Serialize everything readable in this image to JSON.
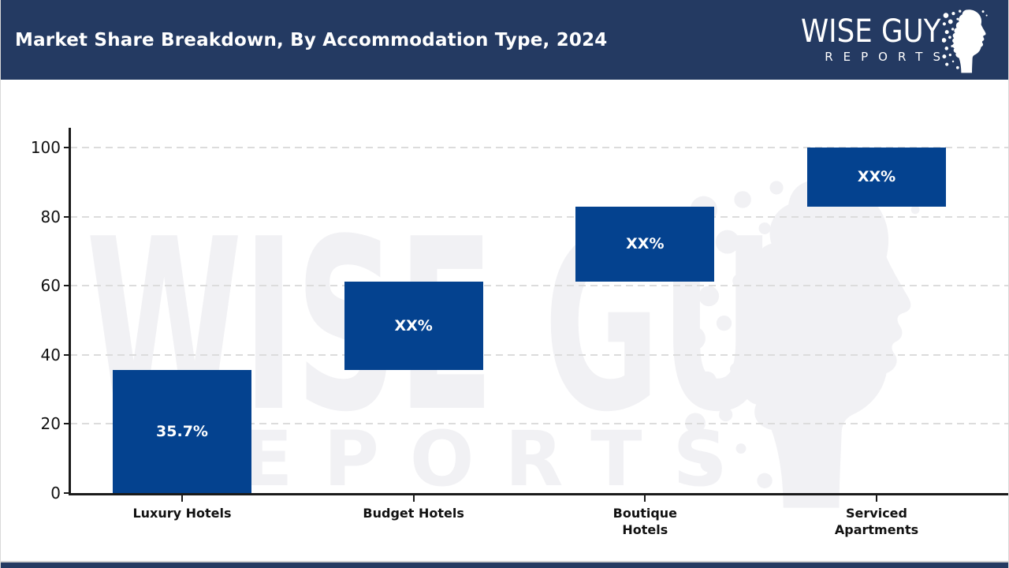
{
  "header": {
    "title": "Market Share Breakdown, By Accommodation Type, 2024",
    "logo": {
      "wordmark": "WISE GUY",
      "subtitle": "REPORTS"
    }
  },
  "watermark": {
    "line1": "WISE GUY",
    "line2": "REPORTS"
  },
  "chart_data": {
    "type": "bar",
    "subtype": "waterfall",
    "title": "Market Share Breakdown, By Accommodation Type, 2024",
    "categories": [
      "Luxury Hotels",
      "Budget Hotels",
      "Boutique Hotels",
      "Serviced Apartments"
    ],
    "series": [
      {
        "name": "Market share (%)",
        "segments": [
          {
            "category": "Luxury Hotels",
            "start": 0,
            "end": 35.7,
            "value": 35.7,
            "label": "35.7%"
          },
          {
            "category": "Budget Hotels",
            "start": 35.7,
            "end": 61.2,
            "value": 25.5,
            "label": "XX%"
          },
          {
            "category": "Boutique Hotels",
            "start": 61.2,
            "end": 82.9,
            "value": 21.7,
            "label": "XX%"
          },
          {
            "category": "Serviced Apartments",
            "start": 82.9,
            "end": 100,
            "value": 17.1,
            "label": "XX%"
          }
        ]
      }
    ],
    "xlabel": "",
    "ylabel": "",
    "ylim": [
      0,
      100
    ],
    "yticks": [
      0,
      20,
      40,
      60,
      80,
      100
    ],
    "grid": "horizontal-dashed",
    "legend": "none"
  },
  "colors": {
    "header_bg": "#243a62",
    "footer_bg": "#243a62",
    "page_bg": "#ffffff",
    "bar_fill": "#04428f",
    "bar_label": "#ffffff",
    "axis": "#1a1a1a",
    "gridline": "#dcdcdc",
    "tick_label": "#111111",
    "watermark": "#f1f1f4"
  }
}
